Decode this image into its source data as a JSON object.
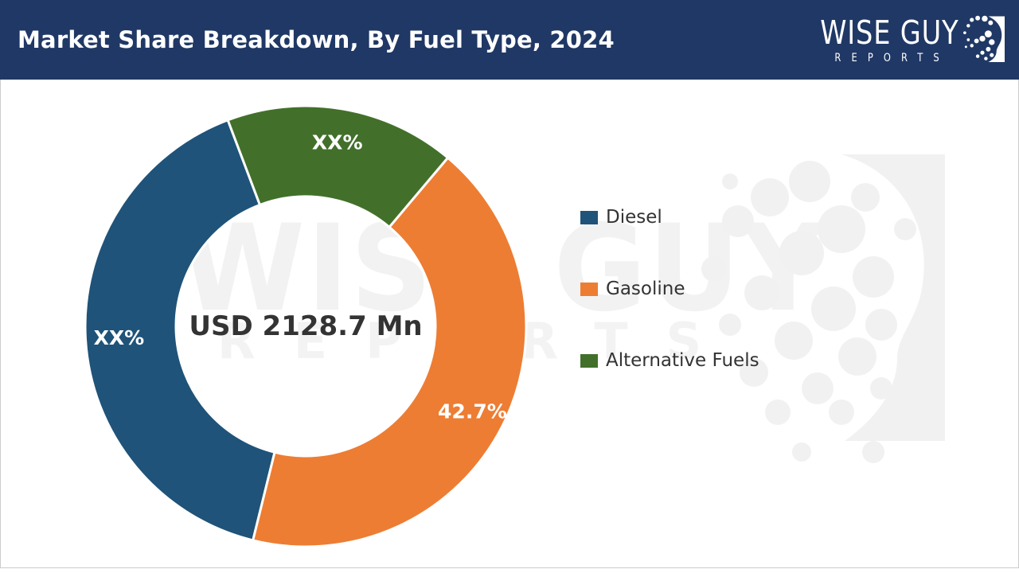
{
  "header": {
    "title": "Market Share Breakdown, By Fuel Type, 2024",
    "bg_color": "#203865",
    "logo": {
      "wordmark": "WISE GUY",
      "subtext": "REPORTS"
    }
  },
  "chart_data": {
    "type": "pie",
    "subtype": "donut",
    "title": "Market Share Breakdown, By Fuel Type, 2024",
    "center_label": "USD 2128.7 Mn",
    "unit": "%",
    "categories": [
      "Diesel",
      "Gasoline",
      "Alternative Fuels"
    ],
    "values": [
      40.4,
      42.7,
      16.9
    ],
    "displayed_labels": [
      "XX%",
      "42.7%",
      "XX%"
    ],
    "colors": [
      "#1f5379",
      "#ed7d33",
      "#42702a"
    ],
    "start_angle_deg": -20.7,
    "draw_order_indices": [
      2,
      1,
      0
    ],
    "legend_position": "right",
    "slice_label_color": "#ffffff",
    "center_label_color": "#333333"
  },
  "legend": {
    "items": [
      {
        "label": "Diesel",
        "color": "#1f5379"
      },
      {
        "label": "Gasoline",
        "color": "#ed7d33"
      },
      {
        "label": "Alternative Fuels",
        "color": "#42702a"
      }
    ]
  },
  "watermark": {
    "wordmark": "WISE GUY",
    "subtext": "REPORTS"
  }
}
